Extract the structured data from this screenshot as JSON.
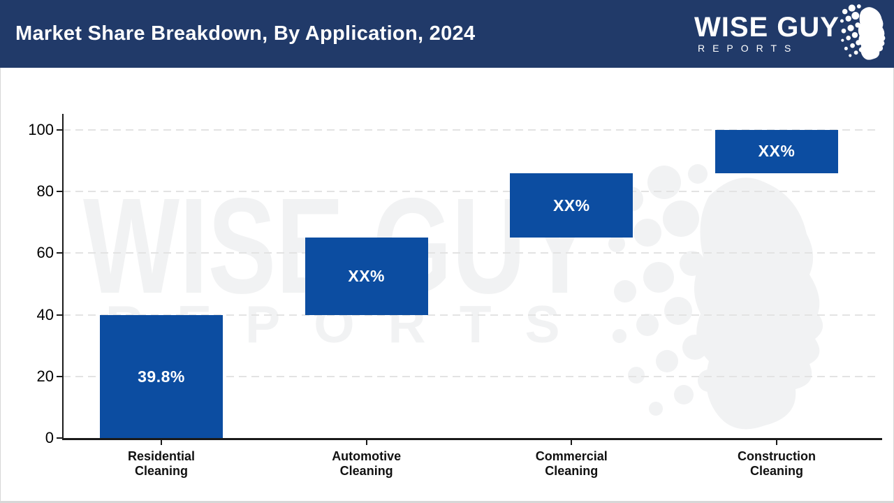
{
  "header": {
    "title": "Market Share Breakdown, By Application, 2024",
    "bg_color": "#213a69",
    "logo": {
      "line1": "WISE GUY",
      "line2": "REPORTS"
    }
  },
  "watermark": {
    "line1": "WISE GUY",
    "line2": "REPORTS"
  },
  "chart_data": {
    "type": "bar",
    "variant": "floating-waterfall",
    "title": "Market Share Breakdown, By Application, 2024",
    "categories": [
      [
        "Residential",
        "Cleaning"
      ],
      [
        "Automotive",
        "Cleaning"
      ],
      [
        "Commercial",
        "Cleaning"
      ],
      [
        "Construction",
        "Cleaning"
      ]
    ],
    "bars": [
      {
        "start": 0,
        "end": 39.8,
        "label": "39.8%"
      },
      {
        "start": 39.8,
        "end": 65,
        "label": "XX%"
      },
      {
        "start": 65,
        "end": 86,
        "label": "XX%"
      },
      {
        "start": 86,
        "end": 100,
        "label": "XX%"
      }
    ],
    "ylim": [
      0,
      100
    ],
    "yticks": [
      0,
      20,
      40,
      60,
      80,
      100
    ],
    "xlabel": "",
    "ylabel": "",
    "bar_color": "#0c4da1",
    "bar_label_color": "#ffffff",
    "grid": "horizontal-dashed",
    "legend": "none"
  }
}
